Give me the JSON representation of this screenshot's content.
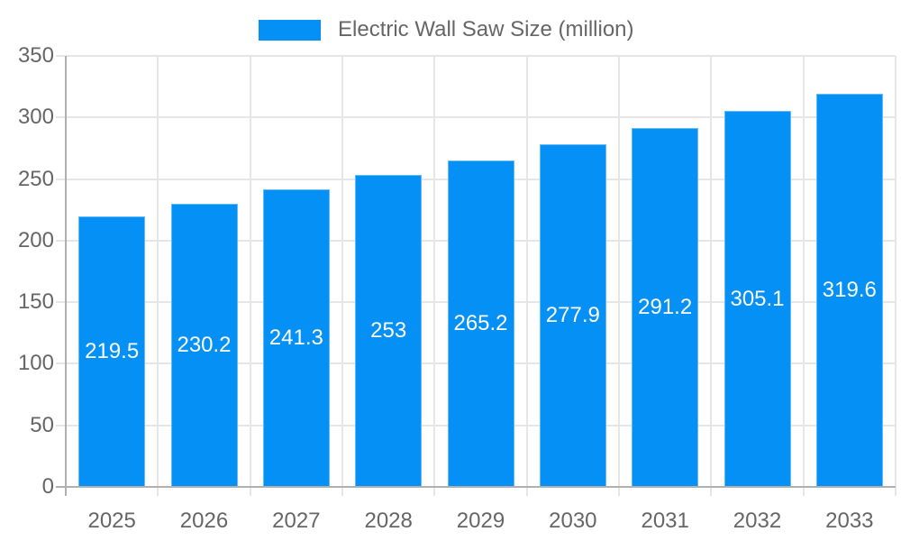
{
  "chart_data": {
    "type": "bar",
    "title": "Electric Wall Saw Size (million)",
    "legend_position": "top-center",
    "categories": [
      "2025",
      "2026",
      "2027",
      "2028",
      "2029",
      "2030",
      "2031",
      "2032",
      "2033"
    ],
    "values": [
      219.5,
      230.2,
      241.3,
      253,
      265.2,
      277.9,
      291.2,
      305.1,
      319.6
    ],
    "value_label_position": "inside-middle",
    "xlabel": "",
    "ylabel": "",
    "ylim": [
      0,
      350
    ],
    "yticks": [
      0,
      50,
      100,
      150,
      200,
      250,
      300,
      350
    ],
    "grid": true
  },
  "colors": {
    "bar": "#0590f5",
    "grid_line": "#e6e6e6",
    "axis_line": "#b0b0b0",
    "axis_text": "#666666",
    "legend_text": "#666666",
    "bar_label_text": "#ffffff",
    "background": "#ffffff"
  }
}
